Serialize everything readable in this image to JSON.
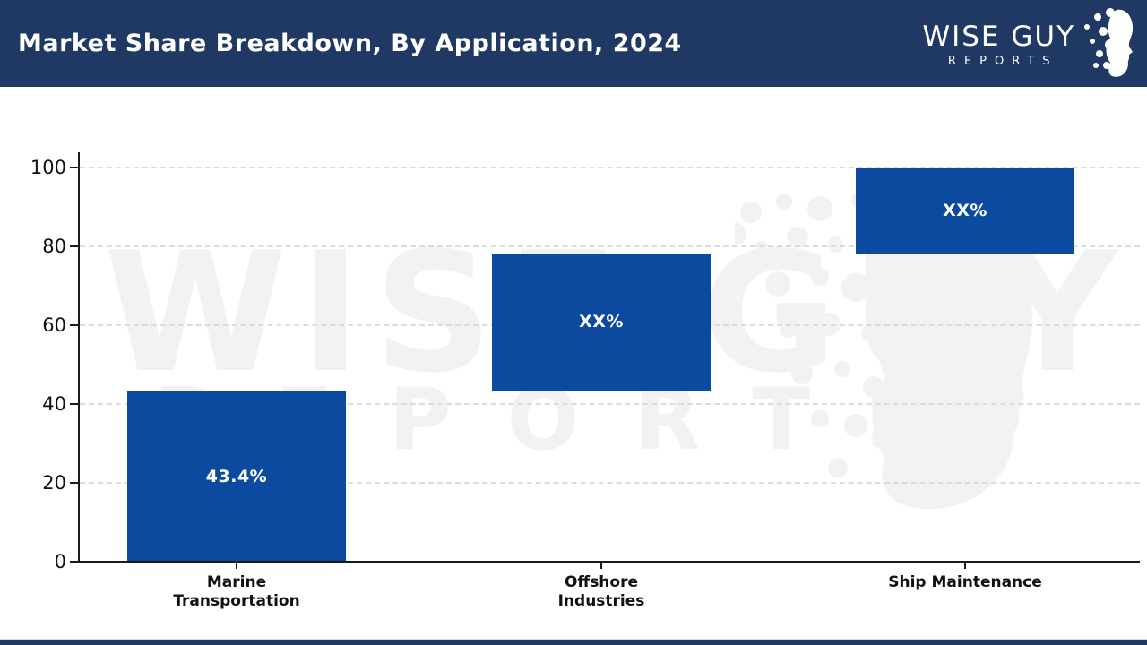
{
  "header": {
    "title": "Market Share Breakdown, By Application, 2024",
    "brand": {
      "line1": "WISE GUY",
      "line2": "REPORTS"
    }
  },
  "watermark": {
    "line1": "WISE GUY",
    "line2": "REPORTS"
  },
  "colors": {
    "header_bg": "#1f3864",
    "footer_bg": "#1f3864",
    "bar_blue": "#0b4a9e",
    "grid_gray": "#dcdcdc",
    "watermark_gray": "#f2f2f4",
    "axis_black": "#1a1a1a",
    "value_label_white": "#ffffff"
  },
  "chart_data": {
    "type": "bar",
    "subtype": "waterfall-stepped",
    "title": "Market Share Breakdown, By Application, 2024",
    "xlabel": "",
    "ylabel": "",
    "ylim": [
      0,
      100
    ],
    "yticks": [
      0,
      20,
      40,
      60,
      80,
      100
    ],
    "grid": "dashed-horizontal",
    "legend": "none",
    "bar_color": "#0b4a9e",
    "categories": [
      "Marine Transportation",
      "Offshore Industries",
      "Ship Maintenance"
    ],
    "bars": [
      {
        "category": "Marine Transportation",
        "category_lines": "Marine\nTransportation",
        "start": 0,
        "end": 43.4,
        "value": 43.4,
        "label": "43.4%"
      },
      {
        "category": "Offshore Industries",
        "category_lines": "Offshore\nIndustries",
        "start": 43.4,
        "end": 78.2,
        "value": 34.8,
        "label": "XX%"
      },
      {
        "category": "Ship Maintenance",
        "category_lines": "Ship Maintenance",
        "start": 78.2,
        "end": 100,
        "value": 21.8,
        "label": "XX%"
      }
    ]
  }
}
